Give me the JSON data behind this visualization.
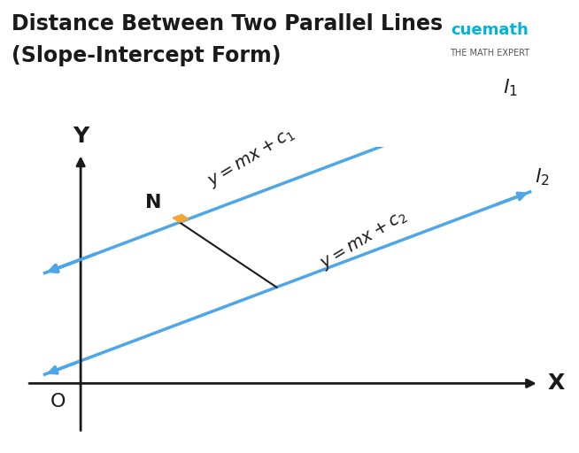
{
  "title_line1": "Distance Between Two Parallel Lines",
  "title_line2": "(Slope-Intercept Form)",
  "bg_color": "#ffffff",
  "axis_color": "#1a1a1a",
  "line_color": "#4da6e8",
  "line_color2": "#4da6e8",
  "square_color": "#f0a830",
  "text_color": "#1a1a1a",
  "label_l1": "$l_1$",
  "label_l2": "$l_2$",
  "label_N": "N",
  "label_O": "O",
  "label_X": "X",
  "label_Y": "Y",
  "eq1": "$y =mx+ c_1$",
  "eq2": "$y =mx+ c_2$",
  "slope": 0.75,
  "intercept1": 0.55,
  "intercept2": 0.1,
  "figsize": [
    6.54,
    5.12
  ],
  "dpi": 100
}
